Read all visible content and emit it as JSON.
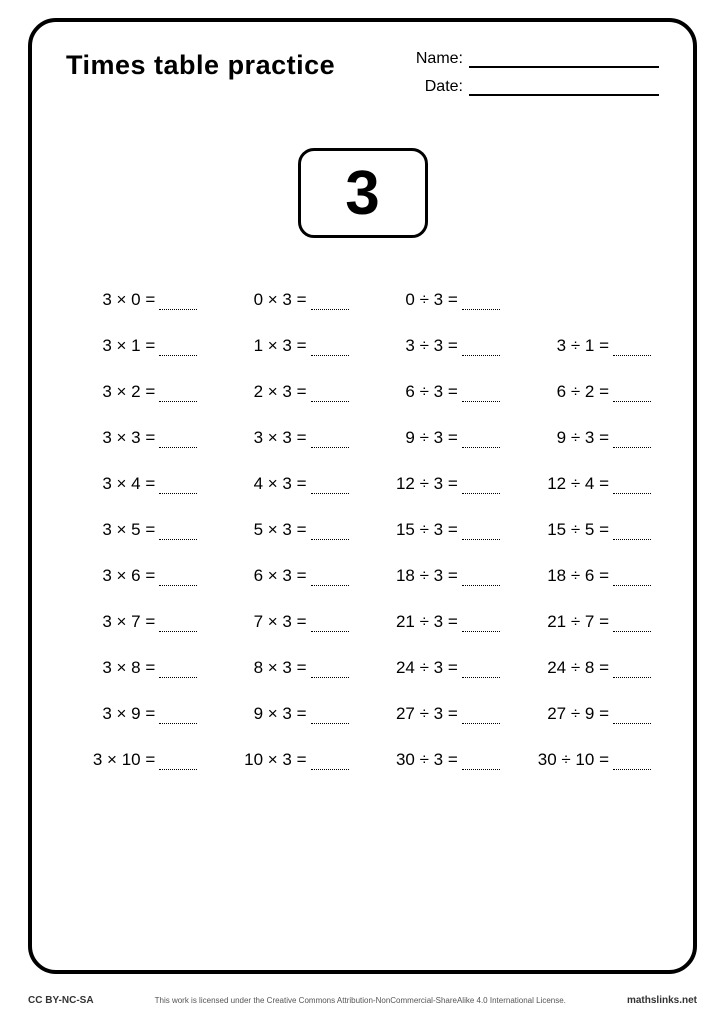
{
  "title": "Times table practice",
  "name_label": "Name:",
  "date_label": "Date:",
  "number": "3",
  "columns": [
    [
      "3 × 0 =",
      "3 × 1 =",
      "3 × 2 =",
      "3 × 3 =",
      "3 × 4 =",
      "3 × 5 =",
      "3 × 6 =",
      "3 × 7 =",
      "3 × 8 =",
      "3 × 9 =",
      "3 × 10 ="
    ],
    [
      "0 × 3 =",
      "1 × 3 =",
      "2 × 3 =",
      "3 × 3 =",
      "4 × 3 =",
      "5 × 3 =",
      "6 × 3 =",
      "7 × 3 =",
      "8 × 3 =",
      "9 × 3 =",
      "10 × 3 ="
    ],
    [
      "0 ÷ 3 =",
      "3 ÷ 3 =",
      "6 ÷ 3 =",
      "9 ÷ 3 =",
      "12 ÷ 3 =",
      "15 ÷ 3 =",
      "18 ÷ 3 =",
      "21 ÷ 3 =",
      "24 ÷ 3 =",
      "27 ÷ 3 =",
      "30 ÷ 3 ="
    ],
    [
      "",
      "3 ÷ 1 =",
      "6 ÷ 2 =",
      "9 ÷ 3 =",
      "12 ÷ 4 =",
      "15 ÷ 5 =",
      "18 ÷ 6 =",
      "21 ÷ 7 =",
      "24 ÷ 8 =",
      "27 ÷ 9 =",
      "30 ÷ 10 ="
    ]
  ],
  "footer": {
    "license": "CC BY-NC-SA",
    "text": "This work is licensed under the Creative Commons Attribution-NonCommercial-ShareAlike 4.0 International License.",
    "site": "mathslinks.net"
  },
  "style": {
    "page_border_color": "#000000",
    "page_border_width": 4,
    "page_border_radius": 28,
    "background_color": "#ffffff",
    "text_color": "#000000",
    "title_fontsize": 27,
    "field_fontsize": 16,
    "field_line_width": 190,
    "big_number_fontsize": 62,
    "big_number_box_width": 130,
    "big_number_box_height": 90,
    "big_number_box_radius": 16,
    "problem_fontsize": 17,
    "answer_line_width": 38,
    "row_gap": 18,
    "column_gap": 28,
    "font_family": "Comic Sans MS"
  }
}
